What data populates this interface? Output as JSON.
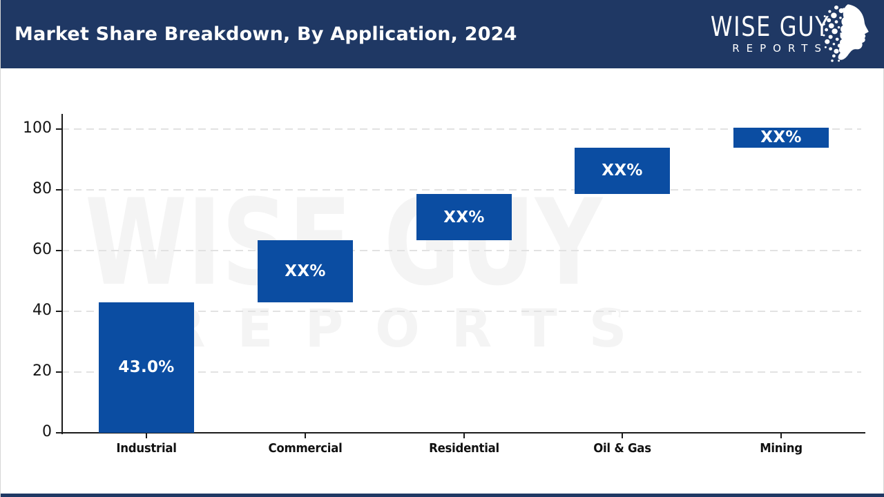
{
  "header": {
    "title": "Market Share Breakdown, By Application, 2024",
    "logo": {
      "line1": "WISE GUY",
      "line2": "REPORTS"
    }
  },
  "watermark": {
    "line1": "WISE GUY",
    "line2": "REPORTS"
  },
  "colors": {
    "header_bg": "#1f3864",
    "bar": "#0b4da2",
    "bar_label": "#ffffff",
    "grid": "#e2e2e2",
    "watermark": "#f4f4f4"
  },
  "chart_data": {
    "type": "bar",
    "subtype": "waterfall",
    "title": "Market Share Breakdown, By Application, 2024",
    "xlabel": "",
    "ylabel": "",
    "categories": [
      "Industrial",
      "Commercial",
      "Residential",
      "Oil & Gas",
      "Mining"
    ],
    "segments": [
      {
        "category": "Industrial",
        "start": 0,
        "end": 43.0,
        "label": "43.0%"
      },
      {
        "category": "Commercial",
        "start": 43.0,
        "end": 63.3,
        "label": "XX%"
      },
      {
        "category": "Residential",
        "start": 63.3,
        "end": 78.6,
        "label": "XX%"
      },
      {
        "category": "Oil & Gas",
        "start": 78.6,
        "end": 93.9,
        "label": "XX%"
      },
      {
        "category": "Mining",
        "start": 93.9,
        "end": 100.5,
        "label": "XX%"
      }
    ],
    "y_ticks": [
      0,
      20,
      40,
      60,
      80,
      100
    ],
    "ylim": [
      0,
      105
    ],
    "grid": "dashed-horizontal",
    "legend": "none"
  }
}
